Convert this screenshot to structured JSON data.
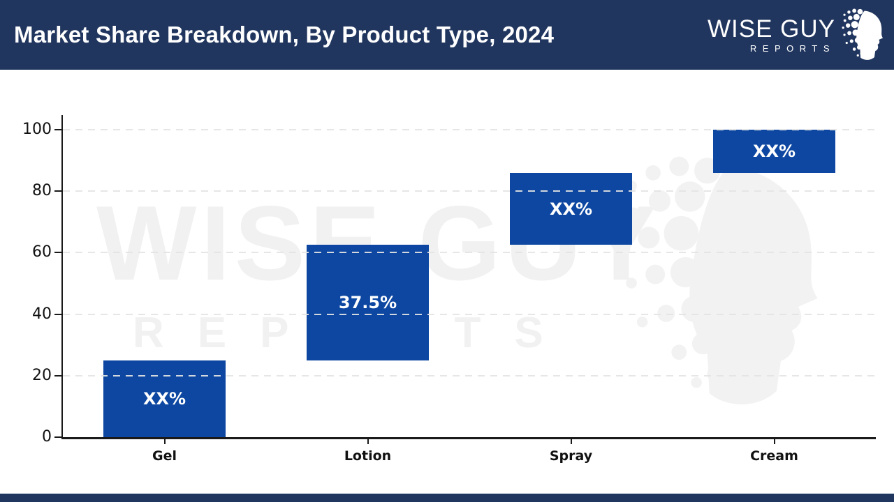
{
  "colors": {
    "navy": "#21365f",
    "bar_blue": "#0d47a1",
    "grid_gray": "#e4e4e4",
    "axis_black": "#1a1a1a",
    "watermark_gray": "#f1f1f1",
    "bar_label_white": "#ffffff"
  },
  "header": {
    "title": "Market Share Breakdown, By Product Type, 2024",
    "logo": {
      "line1": "WISE GUY",
      "line2": "REPORTS",
      "head_icon": "dotted-head-profile"
    }
  },
  "watermark": {
    "line1": "WISE GUY",
    "line2": "REPORTS",
    "head_icon": "dotted-head-profile"
  },
  "chart_data": {
    "type": "bar",
    "variant": "floating-waterfall",
    "categories": [
      "Gel",
      "Lotion",
      "Spray",
      "Cream"
    ],
    "segments": [
      {
        "category": "Gel",
        "start": 0,
        "end": 25,
        "label": "XX%"
      },
      {
        "category": "Lotion",
        "start": 25,
        "end": 62.5,
        "label": "37.5%"
      },
      {
        "category": "Spray",
        "start": 62.5,
        "end": 86,
        "label": "XX%"
      },
      {
        "category": "Cream",
        "start": 86,
        "end": 100,
        "label": "XX%"
      }
    ],
    "yticks": [
      0,
      20,
      40,
      60,
      80,
      100
    ],
    "ylim": [
      0,
      104.8
    ],
    "xlabel": "",
    "ylabel": "",
    "legend": "none",
    "grid": {
      "horizontal": true,
      "style": "dashed",
      "drawn_above_bars": true
    },
    "bar_width_fraction": 0.151
  }
}
